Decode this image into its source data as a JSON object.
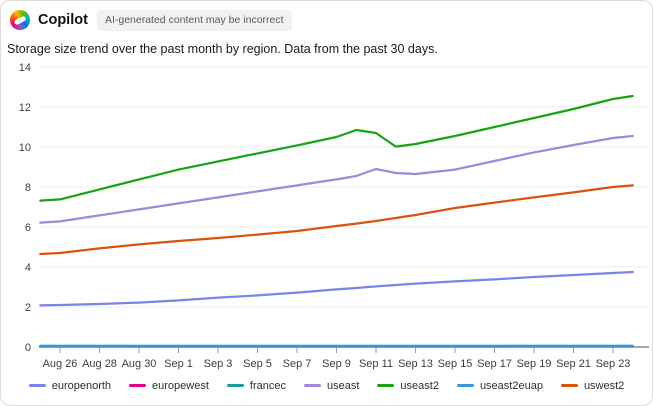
{
  "header": {
    "app_name": "Copilot",
    "logo_icon": "copilot-logo-icon",
    "badge": "AI-generated content may be incorrect"
  },
  "message": "Storage size trend over the past month by region. Data from the past 30 days.",
  "chart_data": {
    "type": "line",
    "title": "",
    "xlabel": "",
    "ylabel": "",
    "ylim": [
      0,
      14
    ],
    "y_ticks": [
      0,
      2,
      4,
      6,
      8,
      10,
      12,
      14
    ],
    "grid": true,
    "legend_position": "bottom",
    "x_tick_labels": [
      "Aug 26",
      "Aug 28",
      "Aug 30",
      "Sep 1",
      "Sep 3",
      "Sep 5",
      "Sep 7",
      "Sep 9",
      "Sep 11",
      "Sep 13",
      "Sep 15",
      "Sep 17",
      "Sep 19",
      "Sep 21",
      "Sep 23"
    ],
    "x_dates": [
      "Aug 25",
      "Aug 26",
      "Aug 28",
      "Aug 30",
      "Sep 1",
      "Sep 3",
      "Sep 5",
      "Sep 7",
      "Sep 9",
      "Sep 10",
      "Sep 11",
      "Sep 12",
      "Sep 13",
      "Sep 15",
      "Sep 17",
      "Sep 19",
      "Sep 21",
      "Sep 23",
      "Sep 24"
    ],
    "x_day_offsets": [
      0,
      1,
      3,
      5,
      7,
      9,
      11,
      13,
      15,
      16,
      17,
      18,
      19,
      21,
      23,
      25,
      27,
      29,
      30
    ],
    "series": [
      {
        "name": "europenorth",
        "color": "#7B83EB",
        "values": [
          2.08,
          2.1,
          2.15,
          2.22,
          2.33,
          2.47,
          2.58,
          2.72,
          2.88,
          2.95,
          3.03,
          3.1,
          3.17,
          3.28,
          3.38,
          3.5,
          3.6,
          3.7,
          3.75
        ]
      },
      {
        "name": "europewest",
        "color": "#E3008C",
        "values": [
          0.04,
          0.04,
          0.04,
          0.04,
          0.04,
          0.04,
          0.04,
          0.04,
          0.04,
          0.04,
          0.04,
          0.04,
          0.04,
          0.04,
          0.04,
          0.04,
          0.04,
          0.04,
          0.04
        ]
      },
      {
        "name": "francec",
        "color": "#1C9C9C",
        "values": [
          0.05,
          0.05,
          0.05,
          0.05,
          0.05,
          0.05,
          0.05,
          0.05,
          0.05,
          0.05,
          0.05,
          0.05,
          0.05,
          0.05,
          0.05,
          0.05,
          0.05,
          0.05,
          0.05
        ]
      },
      {
        "name": "useast",
        "color": "#A288D8",
        "values": [
          6.22,
          6.28,
          6.58,
          6.88,
          7.18,
          7.48,
          7.78,
          8.08,
          8.38,
          8.55,
          8.9,
          8.7,
          8.65,
          8.87,
          9.3,
          9.73,
          10.1,
          10.45,
          10.55
        ]
      },
      {
        "name": "useast2",
        "color": "#16A316",
        "values": [
          7.32,
          7.38,
          7.88,
          8.38,
          8.87,
          9.28,
          9.68,
          10.08,
          10.5,
          10.85,
          10.7,
          10.02,
          10.15,
          10.55,
          11.0,
          11.45,
          11.9,
          12.4,
          12.55
        ]
      },
      {
        "name": "useast2euap",
        "color": "#3A96DD",
        "values": [
          0.06,
          0.06,
          0.06,
          0.06,
          0.06,
          0.06,
          0.06,
          0.06,
          0.06,
          0.06,
          0.06,
          0.06,
          0.06,
          0.06,
          0.06,
          0.06,
          0.06,
          0.06,
          0.06
        ]
      },
      {
        "name": "uswest2",
        "color": "#D9530E",
        "values": [
          4.65,
          4.7,
          4.93,
          5.13,
          5.3,
          5.45,
          5.62,
          5.8,
          6.05,
          6.17,
          6.3,
          6.45,
          6.6,
          6.95,
          7.22,
          7.48,
          7.73,
          8.0,
          8.08
        ]
      }
    ]
  }
}
